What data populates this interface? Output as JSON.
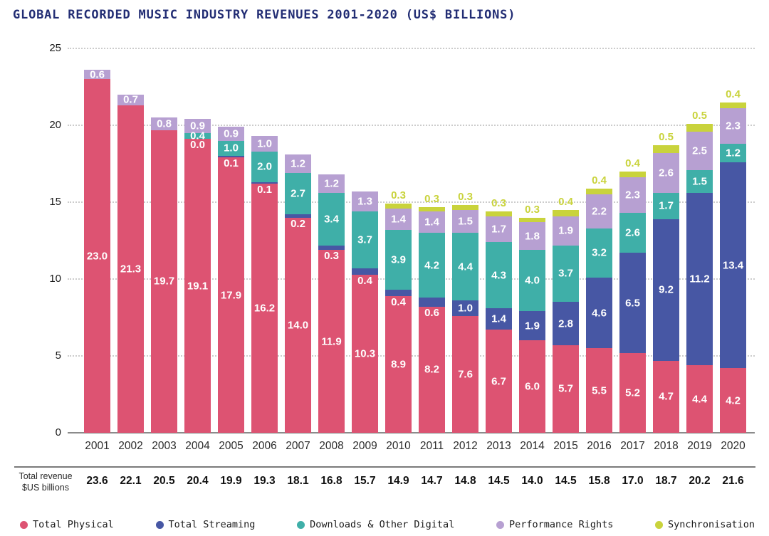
{
  "title": "GLOBAL RECORDED MUSIC INDUSTRY REVENUES 2001-2020 (US$ BILLIONS)",
  "colors": {
    "title_navy": "#222d74",
    "physical": "#dd5372",
    "streaming": "#4757a4",
    "downloads": "#3fafa8",
    "performance": "#b7a0d2",
    "synchronisation": "#c9d33c",
    "bar_label": "#ffffff",
    "grid": "#cccccc",
    "baseline": "#8b8b8b"
  },
  "chart_data": {
    "type": "bar",
    "stacked": true,
    "title": "GLOBAL RECORDED MUSIC INDUSTRY REVENUES 2001-2020 (US$ BILLIONS)",
    "ylim": [
      0,
      25
    ],
    "yticks": [
      0,
      5,
      10,
      15,
      20,
      25
    ],
    "grid": "horizontal-dotted",
    "legend_position": "bottom",
    "categories": [
      "2001",
      "2002",
      "2003",
      "2004",
      "2005",
      "2006",
      "2007",
      "2008",
      "2009",
      "2010",
      "2011",
      "2012",
      "2013",
      "2014",
      "2015",
      "2016",
      "2017",
      "2018",
      "2019",
      "2020"
    ],
    "series": [
      {
        "name": "Total Physical",
        "color": "#dd5372",
        "label_style": "inside-white",
        "values": [
          23.0,
          21.3,
          19.7,
          19.1,
          17.9,
          16.2,
          14.0,
          11.9,
          10.3,
          8.9,
          8.2,
          7.6,
          6.7,
          6.0,
          5.7,
          5.5,
          5.2,
          4.7,
          4.4,
          4.2
        ]
      },
      {
        "name": "Total Streaming",
        "color": "#4757a4",
        "label_style": "inside-white",
        "values": [
          null,
          null,
          null,
          0.0,
          0.1,
          0.1,
          0.2,
          0.3,
          0.4,
          0.4,
          0.6,
          1.0,
          1.4,
          1.9,
          2.8,
          4.6,
          6.5,
          9.2,
          11.2,
          13.4
        ]
      },
      {
        "name": "Downloads & Other Digital",
        "color": "#3fafa8",
        "label_style": "inside-white",
        "values": [
          null,
          null,
          null,
          0.4,
          1.0,
          2.0,
          2.7,
          3.4,
          3.7,
          3.9,
          4.2,
          4.4,
          4.3,
          4.0,
          3.7,
          3.2,
          2.6,
          1.7,
          1.5,
          1.2
        ]
      },
      {
        "name": "Performance Rights",
        "color": "#b7a0d2",
        "label_style": "inside-white",
        "values": [
          0.6,
          0.7,
          0.8,
          0.9,
          0.9,
          1.0,
          1.2,
          1.2,
          1.3,
          1.4,
          1.4,
          1.5,
          1.7,
          1.8,
          1.9,
          2.2,
          2.3,
          2.6,
          2.5,
          2.3
        ]
      },
      {
        "name": "Synchronisation",
        "color": "#c9d33c",
        "label_style": "above-colored",
        "values": [
          null,
          null,
          null,
          null,
          null,
          null,
          null,
          null,
          null,
          0.3,
          0.3,
          0.3,
          0.3,
          0.3,
          0.4,
          0.4,
          0.4,
          0.5,
          0.5,
          0.4
        ]
      }
    ],
    "totals_row": {
      "label_line1": "Total revenue",
      "label_line2": "$US billions",
      "values": [
        "23.6",
        "22.1",
        "20.5",
        "20.4",
        "19.9",
        "19.3",
        "18.1",
        "16.8",
        "15.7",
        "14.9",
        "14.7",
        "14.8",
        "14.5",
        "14.0",
        "14.5",
        "15.8",
        "17.0",
        "18.7",
        "20.2",
        "21.6"
      ]
    }
  },
  "legend": {
    "items": [
      {
        "label": "Total Physical",
        "color": "#dd5372"
      },
      {
        "label": "Total Streaming",
        "color": "#4757a4"
      },
      {
        "label": "Downloads & Other Digital",
        "color": "#3fafa8"
      },
      {
        "label": "Performance Rights",
        "color": "#b7a0d2"
      },
      {
        "label": "Synchronisation",
        "color": "#c9d33c"
      }
    ]
  }
}
